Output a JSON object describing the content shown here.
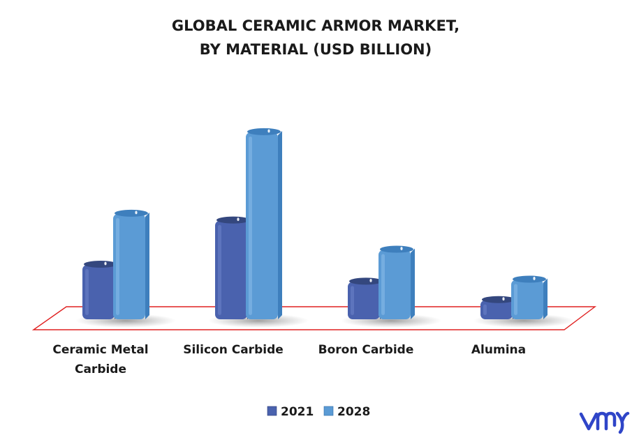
{
  "chart_data": {
    "type": "bar",
    "title_line1": "GLOBAL CERAMIC ARMOR MARKET,",
    "title_line2": "BY MATERIAL (USD BILLION)",
    "categories": [
      "Ceramic Metal Carbide",
      "Silicon Carbide",
      "Boron Carbide",
      "Alumina"
    ],
    "category_lines": [
      [
        "Ceramic Metal",
        "Carbide"
      ],
      [
        "Silicon Carbide"
      ],
      [
        "Boron Carbide"
      ],
      [
        "Alumina"
      ]
    ],
    "series": [
      {
        "name": "2021",
        "values": [
          0.8,
          1.45,
          0.55,
          0.28
        ],
        "color": "#4a62ae"
      },
      {
        "name": "2028",
        "values": [
          1.55,
          2.75,
          1.02,
          0.58
        ],
        "color": "#5b9bd5"
      }
    ],
    "ylim": [
      0,
      2.8
    ],
    "legend_position": "bottom",
    "grid": false,
    "floor_color": "#e02020"
  },
  "brand": {
    "logo_text": "vmr",
    "logo_color": "#2f45c8"
  }
}
